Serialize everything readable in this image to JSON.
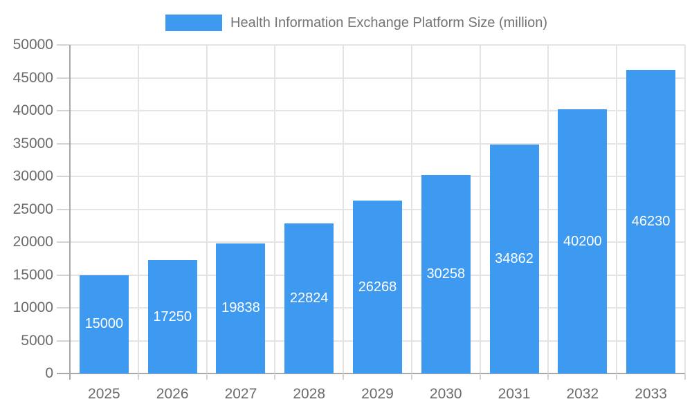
{
  "legend": {
    "label": "Health Information Exchange Platform Size (million)"
  },
  "chart_data": {
    "type": "bar",
    "title": "Health Information Exchange Platform Size (million)",
    "series_name": "Health Information Exchange Platform Size (million)",
    "categories": [
      "2025",
      "2026",
      "2027",
      "2028",
      "2029",
      "2030",
      "2031",
      "2032",
      "2033"
    ],
    "values": [
      15000,
      17250,
      19838,
      22824,
      26268,
      30258,
      34862,
      40200,
      46230
    ],
    "value_labels": [
      "15000",
      "17250",
      "19838",
      "22824",
      "26268",
      "30258",
      "34862",
      "40200",
      "46230"
    ],
    "xlabel": "",
    "ylabel": "",
    "ylim": [
      0,
      50000
    ],
    "ytick_step": 5000,
    "ytick_labels": [
      "0",
      "5000",
      "10000",
      "15000",
      "20000",
      "25000",
      "30000",
      "35000",
      "40000",
      "45000",
      "50000"
    ],
    "grid": true,
    "legend_position": "top",
    "bar_color": "#3D9AF0",
    "value_label_color": "#ffffff",
    "grid_color": "#e4e4e4",
    "axis_color": "#a8a8a8",
    "tick_color": "#d4d4d4",
    "text_color": "#6b6b6b"
  }
}
